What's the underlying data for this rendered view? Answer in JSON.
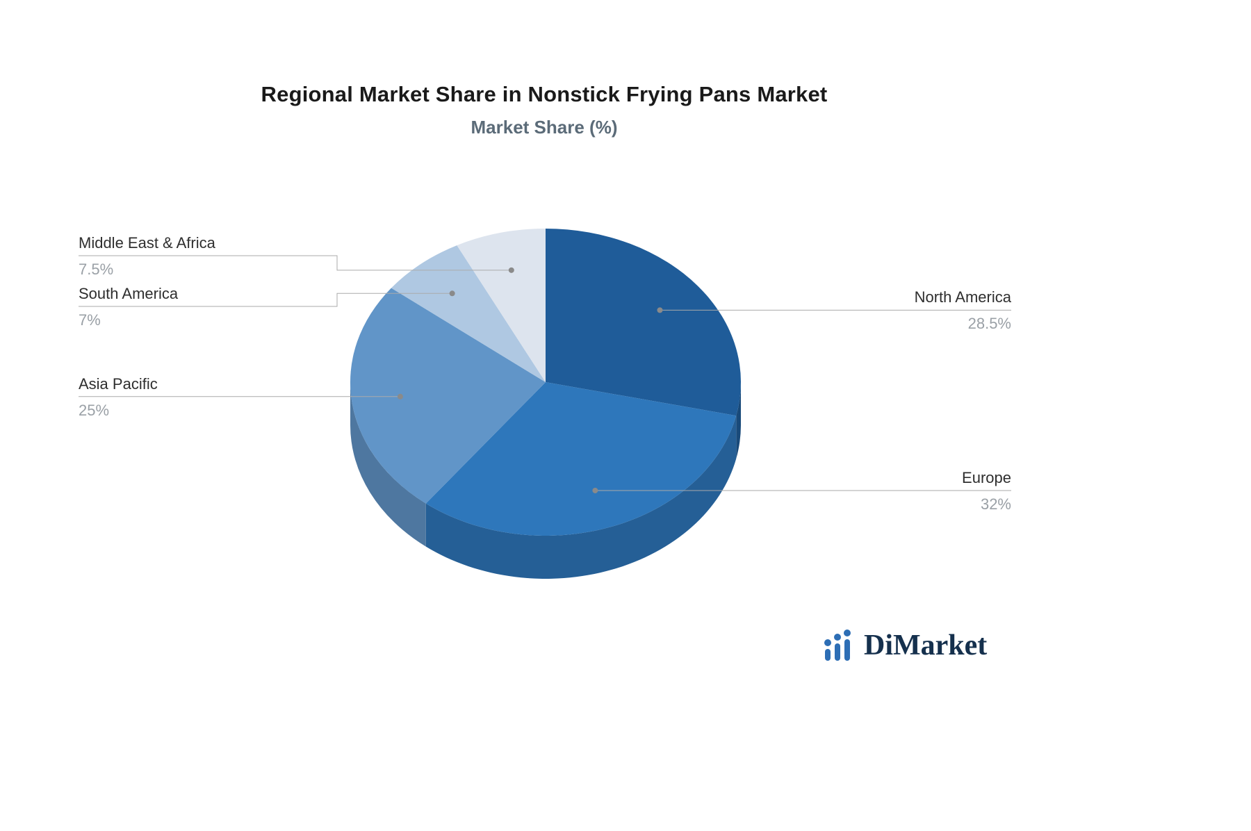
{
  "title": "Regional Market Share in Nonstick Frying Pans Market",
  "subtitle": "Market Share (%)",
  "brand": {
    "name": "DiMarket"
  },
  "chart_data": {
    "type": "pie",
    "title": "Regional Market Share in Nonstick Frying Pans Market",
    "subtitle": "Market Share (%)",
    "unit": "%",
    "style": "3d",
    "start_angle_deg": -90,
    "direction": "clockwise",
    "legend": "none",
    "slices": [
      {
        "label": "North America",
        "value": 28.5,
        "display": "28.5%",
        "color": "#1f5c99"
      },
      {
        "label": "Europe",
        "value": 32,
        "display": "32%",
        "color": "#2e77bb"
      },
      {
        "label": "Asia Pacific",
        "value": 25,
        "display": "25%",
        "color": "#6195c8"
      },
      {
        "label": "South America",
        "value": 7,
        "display": "7%",
        "color": "#afc8e2"
      },
      {
        "label": "Middle East & Africa",
        "value": 7.5,
        "display": "7.5%",
        "color": "#dde4ee"
      }
    ]
  }
}
